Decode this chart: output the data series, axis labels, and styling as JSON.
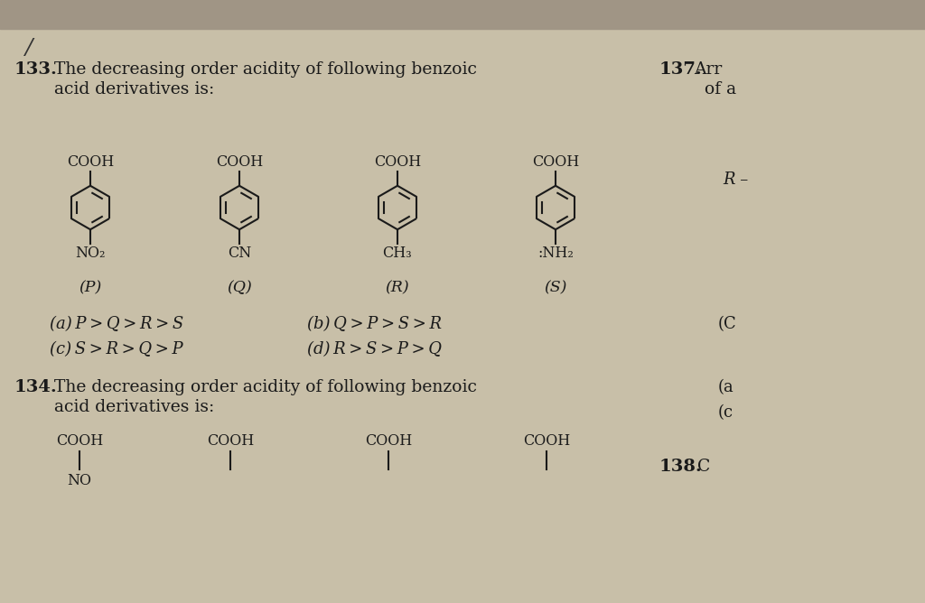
{
  "background_color": "#c8bfa8",
  "text_color": "#1a1a1a",
  "title_133": "133.",
  "title_133_text": "The decreasing order acidity of following benzoic",
  "title_133_2": "acid derivatives is:",
  "title_137": "137.",
  "title_137_text": "Arr",
  "title_137_2": "of a",
  "question_134_num": "134.",
  "question_134_text": "The decreasing order acidity of following benzoic",
  "question_134_2": "acid derivatives is:",
  "substituents": [
    "NO₂",
    "CN",
    "CH₃",
    ":NH₂"
  ],
  "letters": [
    "(P)",
    "(Q)",
    "(R)",
    "(S)"
  ],
  "options": [
    "(a) P > Q > R > S",
    "(b) Q > P > S > R",
    "(c) S > R > Q > P",
    "(d) R > S > P > Q"
  ],
  "right_C": "(C",
  "right_a": "(a",
  "right_c": "(c",
  "right_R": "R –",
  "num_138": "138.",
  "num_138_text": "C",
  "top_bar_color": "#a09585",
  "page_bg": "#c8bfa8"
}
